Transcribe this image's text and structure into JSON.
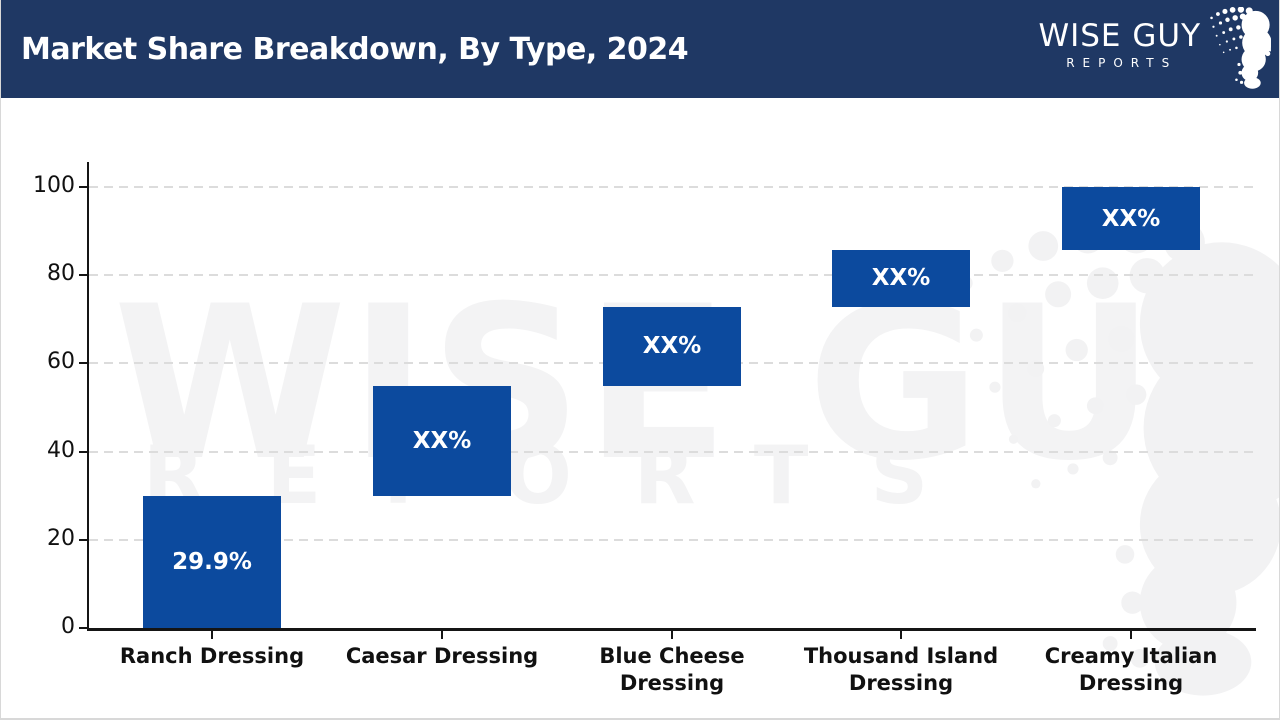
{
  "header": {
    "title": "Market Share Breakdown, By Type, 2024",
    "background_color": "#1F3864",
    "logo": {
      "line1": "WISE GUY",
      "line2": "REPORTS"
    }
  },
  "watermark": {
    "line1": "WISE GUY",
    "line2": "REPORTS"
  },
  "chart_data": {
    "type": "bar",
    "subtype": "waterfall",
    "title": "Market Share Breakdown, By Type, 2024",
    "categories": [
      "Ranch Dressing",
      "Caesar Dressing",
      "Blue Cheese\nDressing",
      "Thousand Island\nDressing",
      "Creamy Italian\nDressing"
    ],
    "bars": [
      {
        "category": "Ranch Dressing",
        "start": 0,
        "end": 29.9,
        "label": "29.9%"
      },
      {
        "category": "Caesar Dressing",
        "start": 29.9,
        "end": 54.9,
        "label": "XX%"
      },
      {
        "category": "Blue Cheese Dressing",
        "start": 54.9,
        "end": 72.9,
        "label": "XX%"
      },
      {
        "category": "Thousand Island Dressing",
        "start": 72.9,
        "end": 85.7,
        "label": "XX%"
      },
      {
        "category": "Creamy Italian Dressing",
        "start": 85.7,
        "end": 100,
        "label": "XX%"
      }
    ],
    "yticks": [
      0,
      20,
      40,
      60,
      80,
      100
    ],
    "ylim": [
      0,
      106
    ],
    "xlabel": "",
    "ylabel": "",
    "grid": "horizontal-dashed",
    "legend": null,
    "colors": {
      "bar": "#0C4A9E",
      "grid": "#dcdcdc",
      "axis": "#151515",
      "bar_label_text": "#ffffff"
    }
  }
}
